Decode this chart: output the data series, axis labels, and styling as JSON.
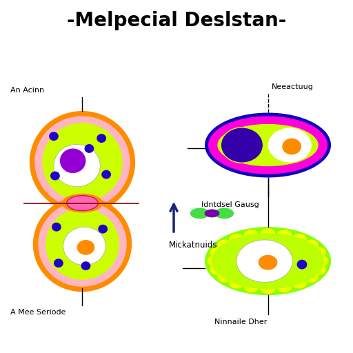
{
  "title": "-Melpecial Deslstan-",
  "bg_color": "#ffffff",
  "left_cell": {
    "outer_color": "#FF8C00",
    "middle_color": "#FFB6C1",
    "inner_color": "#CCFF00",
    "nucleus_white": "#FFFFFF",
    "nucleolus_color": "#9400D3",
    "orange_spot_color": "#FF8C00",
    "blue_dots": "#2200CC",
    "pinch_color": "#FF69B4",
    "label_top": "An Acinn",
    "label_bottom": "A Mee Seriode"
  },
  "right_top_cell": {
    "outer_color": "#1100BB",
    "middle_color": "#FF00DD",
    "inner_color": "#CCFF00",
    "nuc_left_color": "#3300AA",
    "nuc_left_outline": "#CCFF00",
    "nuc_right_white": "#FFFFFF",
    "orange_spot_color": "#FF8C00",
    "nuc_right_green": "#CCFF00",
    "label_top": "Neeactuug",
    "label_mid": "Idntdsel Gausg"
  },
  "right_bottom_cell": {
    "outer_green": "#88FF00",
    "inner_yellow": "#EEFF00",
    "inner_green": "#BBFF00",
    "nucleus_white": "#FFFFFF",
    "orange_spot": "#FF8C00",
    "blue_dot": "#2200CC",
    "label_bottom": "Ninnaile Dher"
  },
  "legend": {
    "arrow_color": "#1A237E",
    "bowtie_green": "#44DD44",
    "bowtie_purple": "#7700AA",
    "label": "Mickatnuids"
  }
}
